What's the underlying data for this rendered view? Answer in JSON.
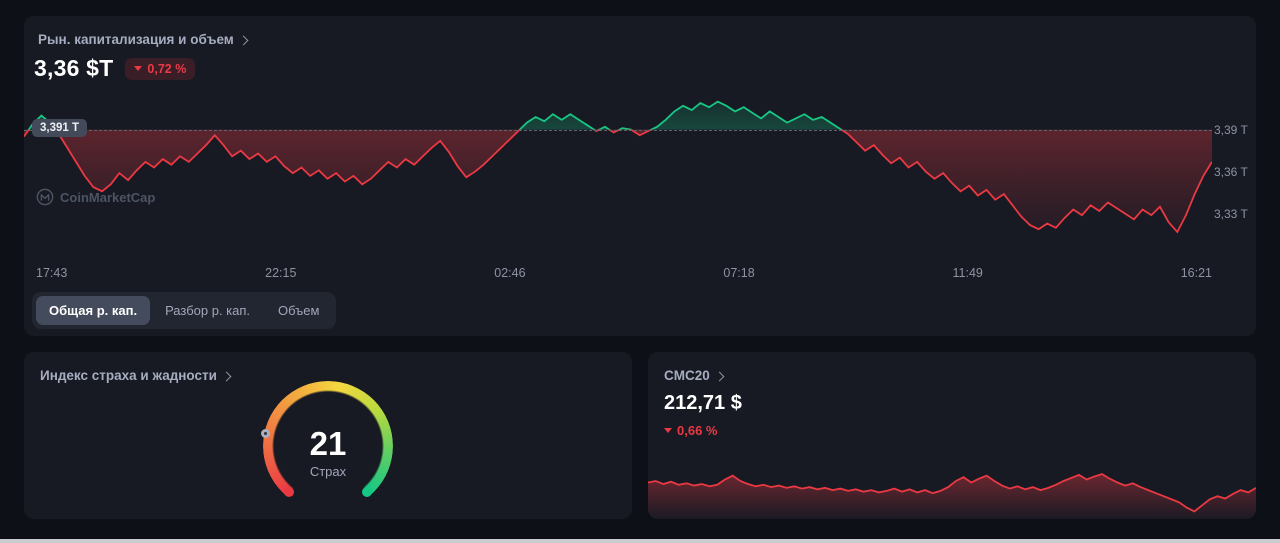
{
  "page": {
    "background": "#0d1117",
    "accent_red": "#ea3943",
    "accent_green": "#16c784"
  },
  "market_card": {
    "title": "Рын. капитализация и объем",
    "value": "3,36 $T",
    "change": "0,72 %",
    "change_direction": "down",
    "baseline_label": "3,391 T",
    "watermark": "CoinMarketCap",
    "ytick_labels": [
      "3,39 T",
      "3,36 T",
      "3,33 T"
    ],
    "xtick_labels": [
      "17:43",
      "22:15",
      "02:46",
      "07:18",
      "11:49",
      "16:21"
    ],
    "tabs": [
      {
        "label": "Общая р. кап.",
        "active": true
      },
      {
        "label": "Разбор р. кап.",
        "active": false
      },
      {
        "label": "Объем",
        "active": false
      }
    ]
  },
  "fear_card": {
    "title": "Индекс страха и жадности",
    "value": "21",
    "label": "Страх"
  },
  "cmc_card": {
    "title": "CMC20",
    "value": "212,71 $",
    "change": "0,66 %",
    "change_direction": "down"
  },
  "chart_data": [
    {
      "type": "line",
      "name": "market-cap-intraday",
      "unit": "$T",
      "baseline": 3.391,
      "ymin": 3.308,
      "ymax": 3.415,
      "ytick_values": [
        3.39,
        3.36,
        3.33
      ],
      "x_labels": [
        "17:43",
        "22:15",
        "02:46",
        "07:18",
        "11:49",
        "16:21"
      ],
      "values": [
        3.386,
        3.395,
        3.401,
        3.396,
        3.388,
        3.378,
        3.368,
        3.358,
        3.35,
        3.347,
        3.352,
        3.36,
        3.355,
        3.362,
        3.368,
        3.364,
        3.37,
        3.366,
        3.372,
        3.368,
        3.374,
        3.38,
        3.387,
        3.38,
        3.372,
        3.376,
        3.37,
        3.374,
        3.368,
        3.372,
        3.365,
        3.36,
        3.364,
        3.358,
        3.362,
        3.356,
        3.36,
        3.354,
        3.358,
        3.352,
        3.356,
        3.362,
        3.368,
        3.364,
        3.37,
        3.366,
        3.372,
        3.378,
        3.383,
        3.375,
        3.365,
        3.357,
        3.361,
        3.366,
        3.372,
        3.378,
        3.384,
        3.39,
        3.396,
        3.4,
        3.397,
        3.402,
        3.398,
        3.402,
        3.398,
        3.394,
        3.39,
        3.393,
        3.389,
        3.392,
        3.391,
        3.387,
        3.39,
        3.393,
        3.398,
        3.404,
        3.408,
        3.405,
        3.41,
        3.407,
        3.411,
        3.408,
        3.404,
        3.407,
        3.403,
        3.399,
        3.404,
        3.4,
        3.396,
        3.399,
        3.402,
        3.398,
        3.4,
        3.396,
        3.392,
        3.388,
        3.382,
        3.376,
        3.38,
        3.373,
        3.367,
        3.371,
        3.364,
        3.368,
        3.361,
        3.356,
        3.36,
        3.353,
        3.347,
        3.351,
        3.344,
        3.348,
        3.341,
        3.345,
        3.337,
        3.329,
        3.323,
        3.32,
        3.324,
        3.321,
        3.328,
        3.334,
        3.33,
        3.337,
        3.333,
        3.339,
        3.335,
        3.331,
        3.327,
        3.334,
        3.33,
        3.336,
        3.325,
        3.318,
        3.33,
        3.345,
        3.358,
        3.368
      ]
    },
    {
      "type": "gauge",
      "name": "fear-greed-index",
      "value": 21,
      "min": 0,
      "max": 100,
      "label": "Страх",
      "start_deg": 220,
      "sweep_deg": 280
    },
    {
      "type": "line",
      "name": "cmc20-intraday",
      "values": [
        48,
        50,
        46,
        49,
        45,
        47,
        44,
        46,
        43,
        45,
        52,
        57,
        50,
        46,
        43,
        45,
        42,
        44,
        41,
        43,
        40,
        42,
        39,
        41,
        38,
        40,
        37,
        39,
        36,
        38,
        35,
        37,
        40,
        36,
        39,
        35,
        38,
        34,
        37,
        42,
        50,
        55,
        48,
        53,
        57,
        50,
        44,
        40,
        43,
        39,
        42,
        38,
        41,
        45,
        50,
        54,
        58,
        52,
        56,
        59,
        53,
        48,
        44,
        47,
        42,
        38,
        34,
        30,
        26,
        22,
        15,
        10,
        18,
        26,
        30,
        27,
        33,
        38,
        35,
        41
      ]
    }
  ]
}
